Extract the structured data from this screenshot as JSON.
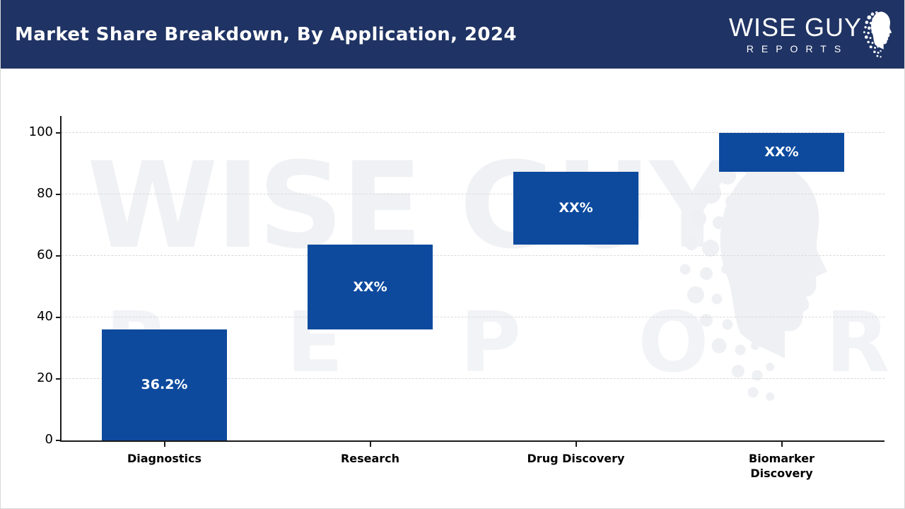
{
  "header": {
    "title": "Market Share Breakdown, By Application, 2024",
    "bg_color": "#1f3364",
    "logo": {
      "line1": "WISE GUY",
      "line2": "REPORTS"
    }
  },
  "watermark": {
    "line1": "WISE GUY",
    "line2": "R E P O R T S"
  },
  "chart_data": {
    "type": "bar",
    "subtype": "waterfall-stacked-segments",
    "title": "Market Share Breakdown, By Application, 2024",
    "categories": [
      "Diagnostics",
      "Research",
      "Drug Discovery",
      "Biomarker Discovery"
    ],
    "segments": [
      {
        "category": "Diagnostics",
        "start": 0,
        "end": 36.2,
        "label": "36.2%"
      },
      {
        "category": "Research",
        "start": 36.2,
        "end": 63.7,
        "label": "XX%"
      },
      {
        "category": "Drug Discovery",
        "start": 63.7,
        "end": 87.4,
        "label": "XX%"
      },
      {
        "category": "Biomarker Discovery",
        "start": 87.4,
        "end": 100,
        "label": "XX%"
      }
    ],
    "xlabel": "",
    "ylabel": "",
    "yticks": [
      0,
      20,
      40,
      60,
      80,
      100
    ],
    "ylim": [
      0,
      105.5
    ],
    "grid": "horizontal-dashed",
    "legend": "none",
    "bar_color": "#0d4a9e",
    "bar_label_color": "#ffffff",
    "axis_color": "#1a1a1a"
  }
}
